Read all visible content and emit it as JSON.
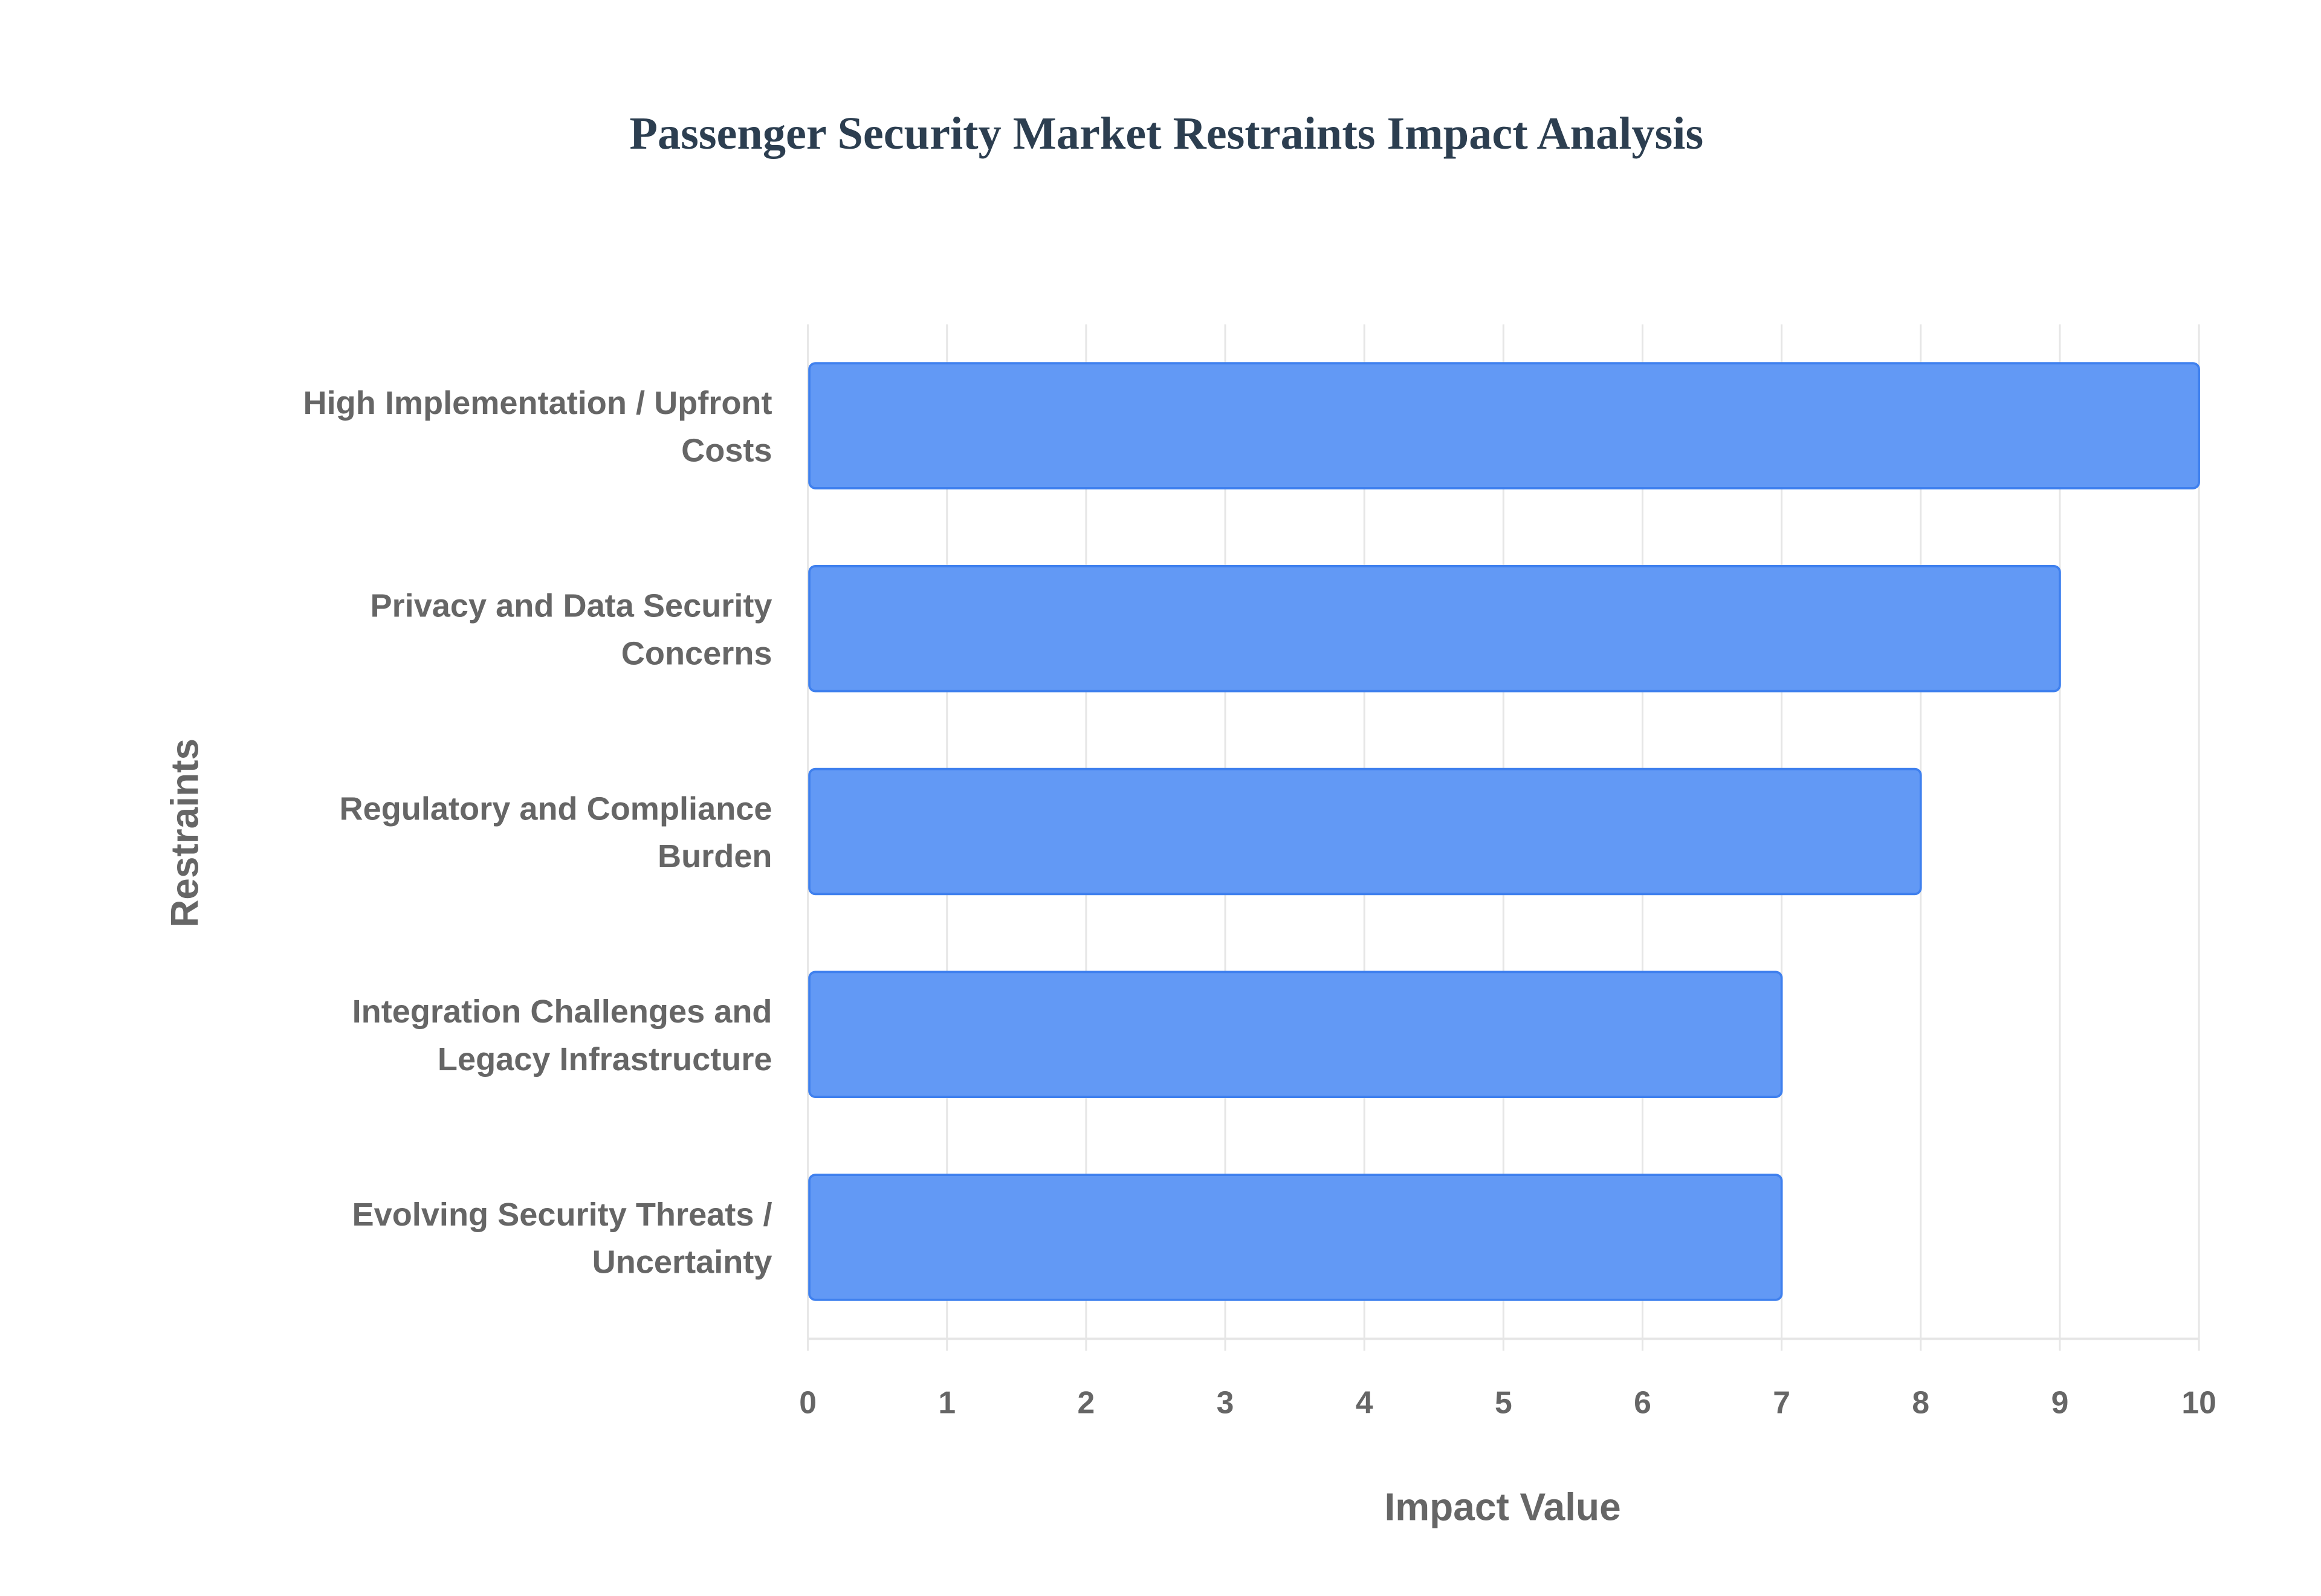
{
  "title": "Passenger Security Market Restraints Impact Analysis",
  "chart_data": {
    "type": "bar",
    "orientation": "horizontal",
    "title": "Passenger Security Market Restraints Impact Analysis",
    "xlabel": "Impact Value",
    "ylabel": "Restraints",
    "xlim": [
      0,
      10
    ],
    "xticks": [
      "0",
      "1",
      "2",
      "3",
      "4",
      "5",
      "6",
      "7",
      "8",
      "9",
      "10"
    ],
    "grid": true,
    "categories": [
      [
        "High Implementation / Upfront",
        "Costs"
      ],
      [
        "Privacy and Data Security",
        "Concerns"
      ],
      [
        "Regulatory and Compliance",
        "Burden"
      ],
      [
        "Integration Challenges and",
        "Legacy Infrastructure"
      ],
      [
        "Evolving Security Threats /",
        "Uncertainty"
      ]
    ],
    "values": [
      10,
      9,
      8,
      7,
      7
    ],
    "colors": {
      "bar_fill": "#6299f5",
      "bar_border": "#3f80ee",
      "grid": "#e6e6e6",
      "text": "#666666"
    }
  }
}
